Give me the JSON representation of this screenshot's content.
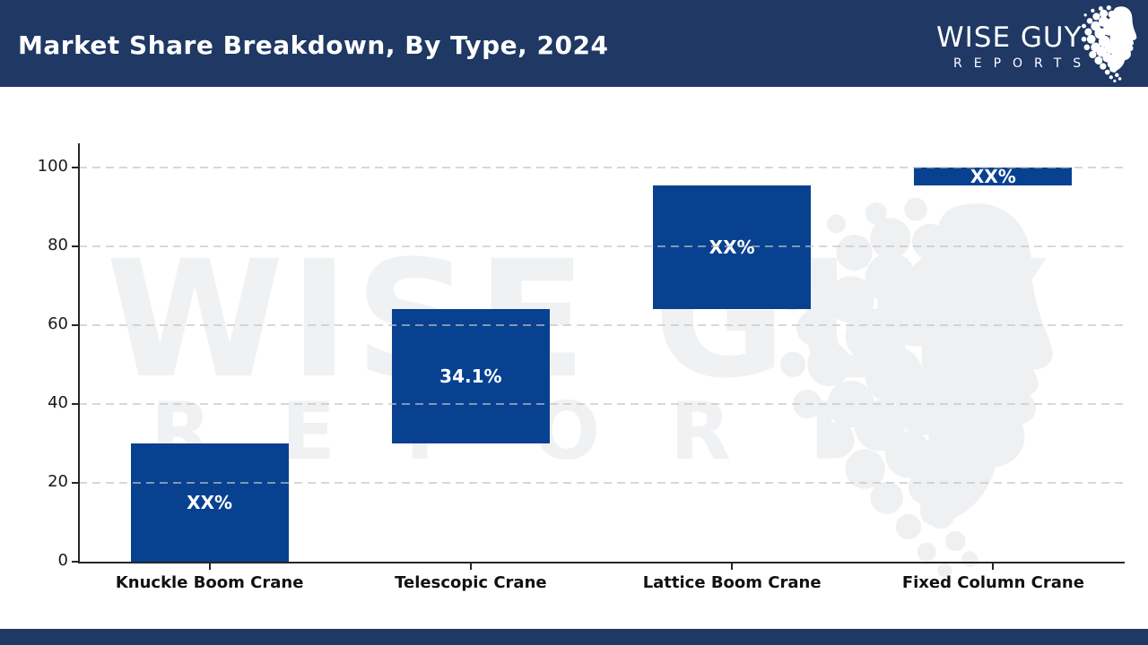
{
  "header": {
    "title": "Market Share Breakdown, By Type, 2024",
    "bg_color": "#1f3864",
    "logo": {
      "line1": "WISE GUY",
      "line2": "REPORTS"
    }
  },
  "watermark": {
    "line1": "WISE GUY",
    "line2": "REPORTS"
  },
  "chart_data": {
    "type": "bar",
    "subtype": "waterfall",
    "title": "Market Share Breakdown, By Type, 2024",
    "categories": [
      "Knuckle Boom Crane",
      "Telescopic Crane",
      "Lattice Boom Crane",
      "Fixed Column Crane"
    ],
    "segments": [
      {
        "category": "Knuckle Boom Crane",
        "start": 0,
        "end": 30,
        "label": "XX%"
      },
      {
        "category": "Telescopic Crane",
        "start": 30,
        "end": 64.1,
        "label": "34.1%"
      },
      {
        "category": "Lattice Boom Crane",
        "start": 64.1,
        "end": 95.5,
        "label": "XX%"
      },
      {
        "category": "Fixed Column Crane",
        "start": 95.5,
        "end": 100,
        "label": "XX%"
      }
    ],
    "yticks": [
      0,
      20,
      40,
      60,
      80,
      100
    ],
    "ylim": [
      0,
      100
    ],
    "grid": true,
    "grid_style": "dashed",
    "legend": "none",
    "bar_color": "#084190",
    "label_color": "#ffffff"
  },
  "footer": {
    "bg_color": "#1f3864"
  }
}
